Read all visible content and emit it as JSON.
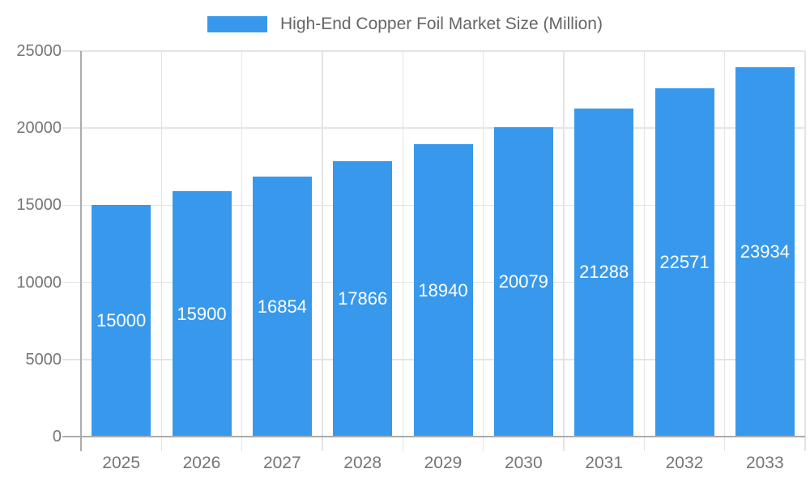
{
  "chart_data": {
    "type": "bar",
    "title": "High-End Copper Foil Market Size (Million)",
    "legend": {
      "label": "High-End Copper Foil Market Size (Million)",
      "position": "top"
    },
    "categories": [
      "2025",
      "2026",
      "2027",
      "2028",
      "2029",
      "2030",
      "2031",
      "2032",
      "2033"
    ],
    "series": [
      {
        "name": "High-End Copper Foil Market Size (Million)",
        "values": [
          15000,
          15900,
          16854,
          17866,
          18940,
          20079,
          21288,
          22571,
          23934
        ]
      }
    ],
    "xlabel": "",
    "ylabel": "",
    "ylim": [
      0,
      25000
    ],
    "yticks": [
      0,
      5000,
      10000,
      15000,
      20000,
      25000
    ],
    "ytick_labels": [
      "0",
      "5000",
      "10000",
      "15000",
      "20000",
      "25000"
    ],
    "grid": true,
    "bar_labels_inside": true,
    "colors": {
      "bar": "#3899EC",
      "bar_label_text": "#FFFFFF",
      "grid_line": "#E4E4E4",
      "axis_line": "#ACACAC",
      "axis_text": "#757575",
      "legend_text": "#666666"
    }
  }
}
